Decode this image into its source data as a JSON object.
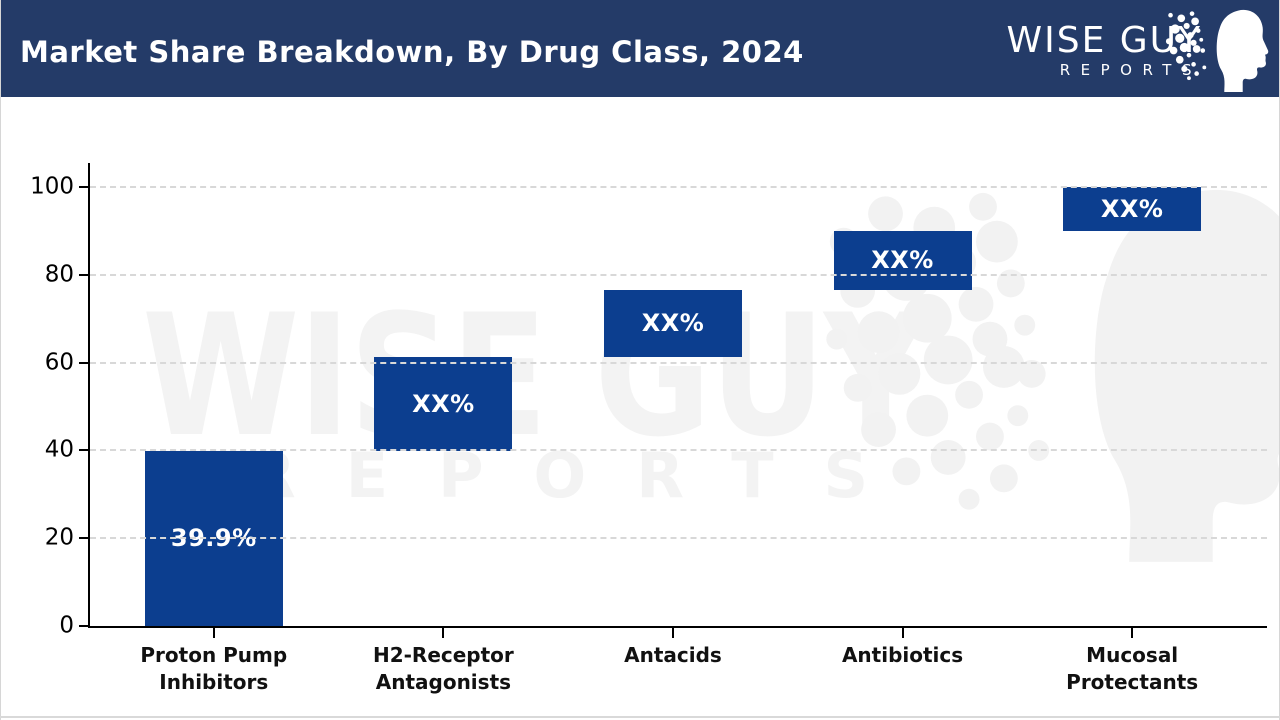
{
  "header": {
    "title": "Market Share Breakdown, By Drug Class, 2024",
    "logo": {
      "name": "WISE GUY",
      "tagline": "REPORTS"
    }
  },
  "watermark": {
    "line1": "WISE GUY",
    "line2": "REPORTS"
  },
  "colors": {
    "header_bg": "#243b68",
    "title_text": "#ffffff",
    "bar": "#0c3e8f",
    "bar_label": "#ffffff",
    "grid": "#d8d8d8",
    "axis": "#000000",
    "watermark": "#f2f2f2"
  },
  "chart_data": {
    "type": "bar",
    "subtype": "waterfall",
    "title": "Market Share Breakdown, By Drug Class, 2024",
    "xlabel": "",
    "ylabel": "",
    "ylim": [
      0,
      105.5
    ],
    "y_ticks": [
      0,
      20,
      40,
      60,
      80,
      100
    ],
    "grid": "horizontal-dashed",
    "legend": "none",
    "bar_color": "#0c3e8f",
    "categories": [
      "Proton Pump Inhibitors",
      "H2-Receptor Antagonists",
      "Antacids",
      "Antibiotics",
      "Mucosal Protectants"
    ],
    "segments": [
      {
        "category": "Proton Pump\nInhibitors",
        "start": 0,
        "end": 39.9,
        "label": "39.9%"
      },
      {
        "category": "H2-Receptor\nAntagonists",
        "start": 39.9,
        "end": 61.3,
        "label": "XX%"
      },
      {
        "category": "Antacids",
        "start": 61.3,
        "end": 76.6,
        "label": "XX%"
      },
      {
        "category": "Antibiotics",
        "start": 76.6,
        "end": 90.0,
        "label": "XX%"
      },
      {
        "category": "Mucosal\nProtectants",
        "start": 90.0,
        "end": 100.0,
        "label": "XX%"
      }
    ]
  }
}
